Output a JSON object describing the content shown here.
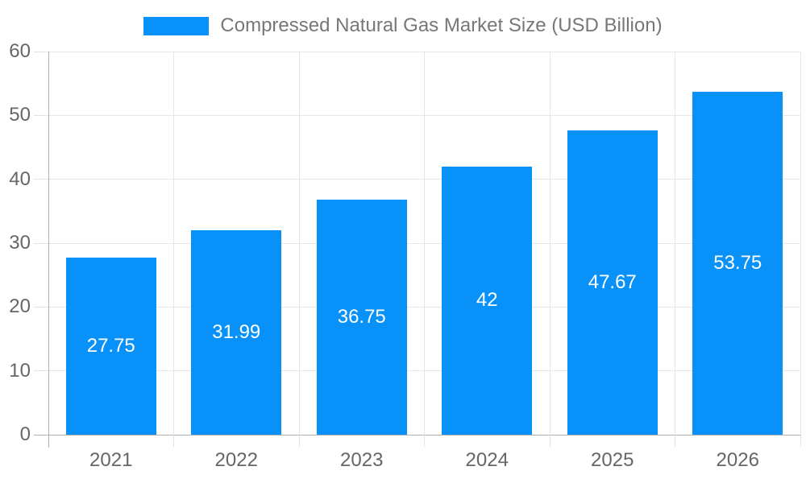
{
  "legend": {
    "label": "Compressed Natural Gas Market Size (USD Billion)"
  },
  "colors": {
    "bar": "#0892f9",
    "grid": "#e6e6e6",
    "axis": "#b0b0b0",
    "axis_text": "#666666",
    "legend_text": "#777777",
    "data_label": "#ffffff",
    "background": "#ffffff"
  },
  "chart_data": {
    "type": "bar",
    "title": "Compressed Natural Gas Market Size (USD Billion)",
    "categories": [
      "2021",
      "2022",
      "2023",
      "2024",
      "2025",
      "2026"
    ],
    "series": [
      {
        "name": "Compressed Natural Gas Market Size (USD Billion)",
        "values": [
          27.75,
          31.99,
          36.75,
          42,
          47.67,
          53.75
        ]
      }
    ],
    "data_labels": [
      "27.75",
      "31.99",
      "36.75",
      "42",
      "47.67",
      "53.75"
    ],
    "xlabel": "",
    "ylabel": "",
    "ylim": [
      0,
      60
    ],
    "yticks": [
      0,
      10,
      20,
      30,
      40,
      50,
      60
    ],
    "grid": true,
    "legend_position": "top"
  }
}
